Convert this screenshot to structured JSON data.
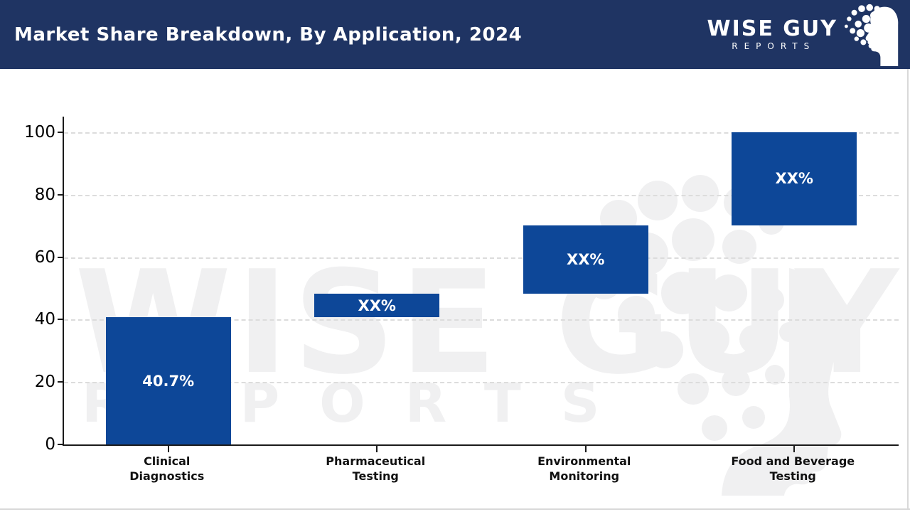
{
  "header": {
    "title": "Market Share Breakdown, By Application, 2024",
    "bg_color": "#1f3463",
    "logo": {
      "line1": "WISE GUY",
      "line2": "REPORTS"
    }
  },
  "watermark": {
    "line1": "WISE GUY",
    "line2": "REPORTS"
  },
  "chart_data": {
    "type": "bar",
    "subtype": "waterfall",
    "title": "Market Share Breakdown, By Application, 2024",
    "xlabel": "",
    "ylabel": "",
    "yticks": [
      0,
      20,
      40,
      60,
      80,
      100
    ],
    "ylim": [
      0,
      105
    ],
    "grid": "horizontal-dashed",
    "legend": "none",
    "bar_color": "#0d4798",
    "categories": [
      {
        "label": "Clinical Diagnostics",
        "lines": [
          "Clinical",
          "Diagnostics"
        ]
      },
      {
        "label": "Pharmaceutical Testing",
        "lines": [
          "Pharmaceutical",
          "Testing"
        ]
      },
      {
        "label": "Environmental Monitoring",
        "lines": [
          "Environmental",
          "Monitoring"
        ]
      },
      {
        "label": "Food and Beverage Testing",
        "lines": [
          "Food and Beverage",
          "Testing"
        ]
      }
    ],
    "series": [
      {
        "name": "Market Share",
        "segments": [
          {
            "category": "Clinical Diagnostics",
            "start": 0,
            "end": 40.7,
            "label": "40.7%"
          },
          {
            "category": "Pharmaceutical Testing",
            "start": 40.7,
            "end": 48.2,
            "label": "XX%"
          },
          {
            "category": "Environmental Monitoring",
            "start": 48.2,
            "end": 70.2,
            "label": "XX%"
          },
          {
            "category": "Food and Beverage Testing",
            "start": 70.2,
            "end": 100,
            "label": "XX%"
          }
        ]
      }
    ]
  }
}
